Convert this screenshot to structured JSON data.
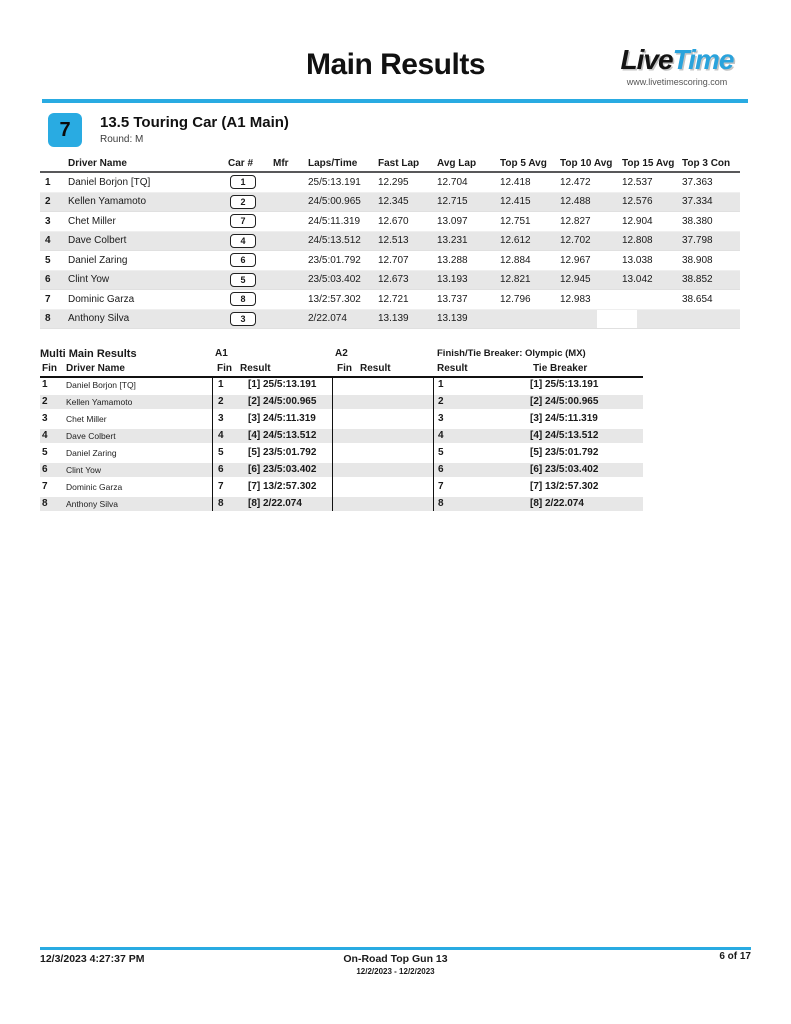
{
  "colors": {
    "accent": "#29abe2",
    "alt": "#e7e7e7",
    "logoblue": "#2aa3dc"
  },
  "header": {
    "title": "Main Results",
    "logo": {
      "live": "Live",
      "time": "Time",
      "url": "www.livetimescoring.com"
    }
  },
  "class_header": {
    "race_number": "7",
    "class_name": "13.5 Touring Car (A1 Main)",
    "round": "Round: M"
  },
  "results_table": {
    "headers": {
      "driver": "Driver Name",
      "car": "Car #",
      "mfr": "Mfr",
      "laps": "Laps/Time",
      "fast": "Fast Lap",
      "avg": "Avg Lap",
      "t5": "Top 5 Avg",
      "t10": "Top 10 Avg",
      "t15": "Top 15 Avg",
      "t3": "Top 3 Con"
    },
    "rows": [
      {
        "pos": "1",
        "driver": "Daniel Borjon [TQ]",
        "car": "1",
        "mfr": "",
        "laps_time": "25/5:13.191",
        "fast_lap": "12.295",
        "avg_lap": "12.704",
        "top5": "12.418",
        "top10": "12.472",
        "top15": "12.537",
        "top3con": "37.363"
      },
      {
        "pos": "2",
        "driver": "Kellen Yamamoto",
        "car": "2",
        "mfr": "",
        "laps_time": "24/5:00.965",
        "fast_lap": "12.345",
        "avg_lap": "12.715",
        "top5": "12.415",
        "top10": "12.488",
        "top15": "12.576",
        "top3con": "37.334"
      },
      {
        "pos": "3",
        "driver": "Chet Miller",
        "car": "7",
        "mfr": "",
        "laps_time": "24/5:11.319",
        "fast_lap": "12.670",
        "avg_lap": "13.097",
        "top5": "12.751",
        "top10": "12.827",
        "top15": "12.904",
        "top3con": "38.380"
      },
      {
        "pos": "4",
        "driver": "Dave Colbert",
        "car": "4",
        "mfr": "",
        "laps_time": "24/5:13.512",
        "fast_lap": "12.513",
        "avg_lap": "13.231",
        "top5": "12.612",
        "top10": "12.702",
        "top15": "12.808",
        "top3con": "37.798"
      },
      {
        "pos": "5",
        "driver": "Daniel Zaring",
        "car": "6",
        "mfr": "",
        "laps_time": "23/5:01.792",
        "fast_lap": "12.707",
        "avg_lap": "13.288",
        "top5": "12.884",
        "top10": "12.967",
        "top15": "13.038",
        "top3con": "38.908"
      },
      {
        "pos": "6",
        "driver": "Clint Yow",
        "car": "5",
        "mfr": "",
        "laps_time": "23/5:03.402",
        "fast_lap": "12.673",
        "avg_lap": "13.193",
        "top5": "12.821",
        "top10": "12.945",
        "top15": "13.042",
        "top3con": "38.852"
      },
      {
        "pos": "7",
        "driver": "Dominic Garza",
        "car": "8",
        "mfr": "",
        "laps_time": "13/2:57.302",
        "fast_lap": "12.721",
        "avg_lap": "13.737",
        "top5": "12.796",
        "top10": "12.983",
        "top15": "",
        "top3con": "38.654"
      },
      {
        "pos": "8",
        "driver": "Anthony Silva",
        "car": "3",
        "mfr": "",
        "laps_time": "2/22.074",
        "fast_lap": "13.139",
        "avg_lap": "13.139",
        "top5": "",
        "top10": "",
        "top15": "",
        "top3con": ""
      }
    ]
  },
  "multi_main": {
    "title": "Multi Main Results",
    "section_a1": "A1",
    "section_a2": "A2",
    "section_finish": "Finish/Tie Breaker: Olympic (MX)",
    "col_fin": "Fin",
    "col_driver": "Driver Name",
    "col_result": "Result",
    "col_tie": "Tie Breaker",
    "rows": [
      {
        "fin": "1",
        "driver": "Daniel Borjon [TQ]",
        "a1_fin": "1",
        "a1_result": "[1] 25/5:13.191",
        "a2_fin": "",
        "a2_result": "",
        "result": "1",
        "tie": "[1] 25/5:13.191"
      },
      {
        "fin": "2",
        "driver": "Kellen Yamamoto",
        "a1_fin": "2",
        "a1_result": "[2] 24/5:00.965",
        "a2_fin": "",
        "a2_result": "",
        "result": "2",
        "tie": "[2] 24/5:00.965"
      },
      {
        "fin": "3",
        "driver": "Chet Miller",
        "a1_fin": "3",
        "a1_result": "[3] 24/5:11.319",
        "a2_fin": "",
        "a2_result": "",
        "result": "3",
        "tie": "[3] 24/5:11.319"
      },
      {
        "fin": "4",
        "driver": "Dave Colbert",
        "a1_fin": "4",
        "a1_result": "[4] 24/5:13.512",
        "a2_fin": "",
        "a2_result": "",
        "result": "4",
        "tie": "[4] 24/5:13.512"
      },
      {
        "fin": "5",
        "driver": "Daniel Zaring",
        "a1_fin": "5",
        "a1_result": "[5] 23/5:01.792",
        "a2_fin": "",
        "a2_result": "",
        "result": "5",
        "tie": "[5] 23/5:01.792"
      },
      {
        "fin": "6",
        "driver": "Clint Yow",
        "a1_fin": "6",
        "a1_result": "[6] 23/5:03.402",
        "a2_fin": "",
        "a2_result": "",
        "result": "6",
        "tie": "[6] 23/5:03.402"
      },
      {
        "fin": "7",
        "driver": "Dominic Garza",
        "a1_fin": "7",
        "a1_result": "[7] 13/2:57.302",
        "a2_fin": "",
        "a2_result": "",
        "result": "7",
        "tie": "[7] 13/2:57.302"
      },
      {
        "fin": "8",
        "driver": "Anthony Silva",
        "a1_fin": "8",
        "a1_result": "[8] 2/22.074",
        "a2_fin": "",
        "a2_result": "",
        "result": "8",
        "tie": "[8] 2/22.074"
      }
    ]
  },
  "footer": {
    "printed": "12/3/2023 4:27:37 PM",
    "event": "On-Road Top Gun 13",
    "dates": "12/2/2023 - 12/2/2023",
    "page": "6 of 17"
  }
}
